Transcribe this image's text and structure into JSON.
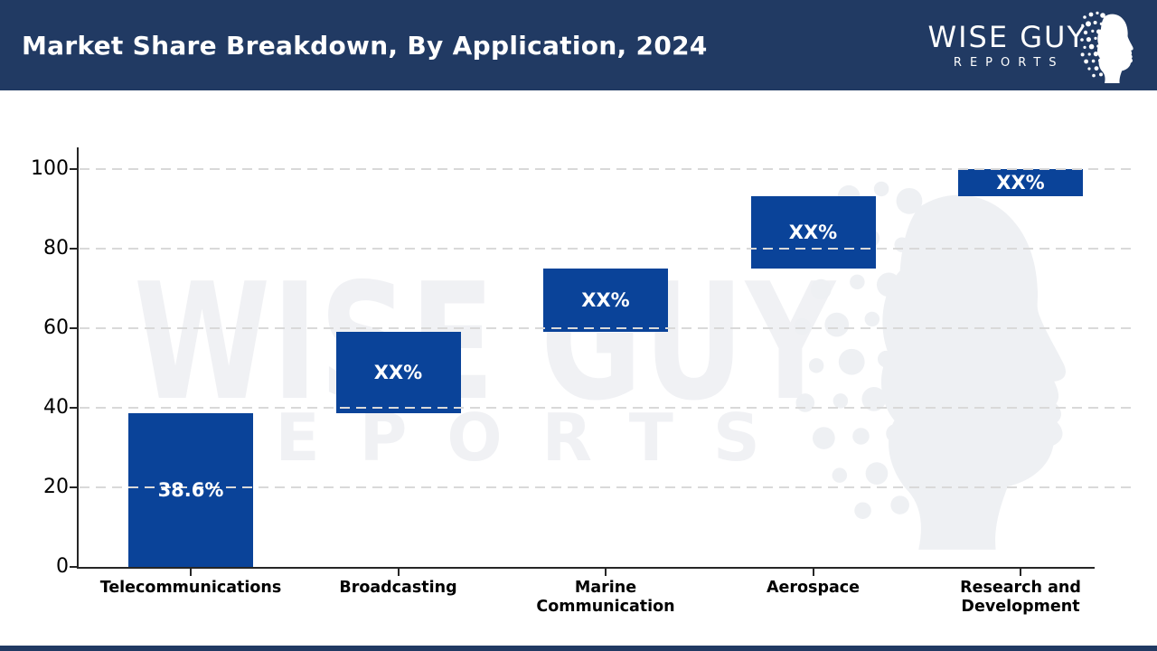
{
  "header": {
    "title": "Market Share Breakdown, By Application, 2024",
    "logo": {
      "wordmark": "WISE GUY",
      "subtext": "REPORTS"
    }
  },
  "watermark": {
    "line1": "WISE GUY",
    "line2": "REPORTS"
  },
  "chart_data": {
    "type": "bar",
    "subtype": "waterfall-stacked-percentage",
    "title": "Market Share Breakdown, By Application, 2024",
    "categories": [
      "Telecommunications",
      "Broadcasting",
      "Marine\nCommunication",
      "Aerospace",
      "Research and\nDevelopment"
    ],
    "segments": [
      {
        "category": "Telecommunications",
        "label": "38.6%",
        "start": 0,
        "end": 38.6
      },
      {
        "category": "Broadcasting",
        "label": "XX%",
        "start": 38.6,
        "end": 59.1
      },
      {
        "category": "Marine Communication",
        "label": "XX%",
        "start": 59.1,
        "end": 75.0
      },
      {
        "category": "Aerospace",
        "label": "XX%",
        "start": 75.0,
        "end": 93.2
      },
      {
        "category": "Research and Development",
        "label": "XX%",
        "start": 93.2,
        "end": 100
      }
    ],
    "ylim": [
      0,
      100
    ],
    "yticks": [
      0,
      20,
      40,
      60,
      80,
      100
    ],
    "grid": true,
    "grid_style": "dashed",
    "legend": false,
    "bar_color": "#0a4399",
    "value_label_color": "#ffffff"
  },
  "colors": {
    "header_bg": "#213a63",
    "footer_bg": "#213a63",
    "bar": "#0a4399",
    "gridline": "#d9d9d9",
    "axis": "#262626",
    "watermark": "#f0f1f4",
    "title_text": "#ffffff"
  }
}
